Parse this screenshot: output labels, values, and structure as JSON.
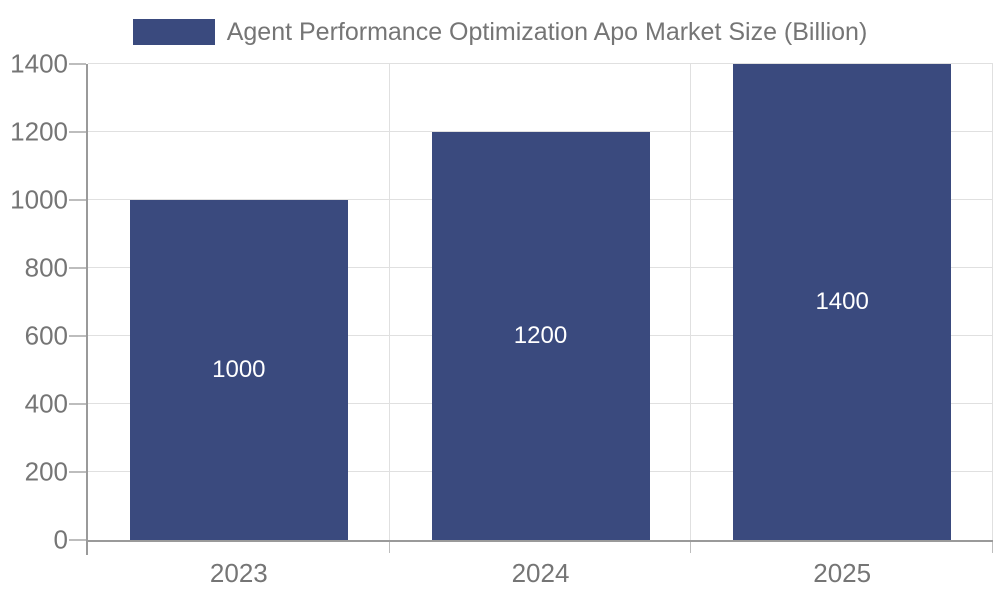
{
  "legend": {
    "label": "Agent Performance Optimization Apo Market Size (Billion)"
  },
  "chart_data": {
    "type": "bar",
    "title": "Agent Performance Optimization Apo Market Size (Billion)",
    "categories": [
      "2023",
      "2024",
      "2025"
    ],
    "series": [
      {
        "name": "Agent Performance Optimization Apo Market Size (Billion)",
        "values": [
          1000,
          1200,
          1400
        ]
      }
    ],
    "values": [
      1000,
      1200,
      1400
    ],
    "value_labels": [
      "1000",
      "1200",
      "1400"
    ],
    "yticks": [
      0,
      200,
      400,
      600,
      800,
      1000,
      1200,
      1400
    ],
    "ytick_labels": [
      "0",
      "200",
      "400",
      "600",
      "800",
      "1000",
      "1200",
      "1400"
    ],
    "ylim": [
      0,
      1400
    ],
    "grid": true,
    "legend_position": "top-center",
    "xlabel": "",
    "ylabel": ""
  },
  "colors": {
    "bar": "#3A4A7E",
    "grid": "#E0E0E0",
    "axis": "#9A9A9A",
    "tick_mark": "#BDBDBD",
    "tick_label": "#757575",
    "bar_label": "#FFFFFF",
    "legend_text": "#757575",
    "background": "#FFFFFF"
  }
}
